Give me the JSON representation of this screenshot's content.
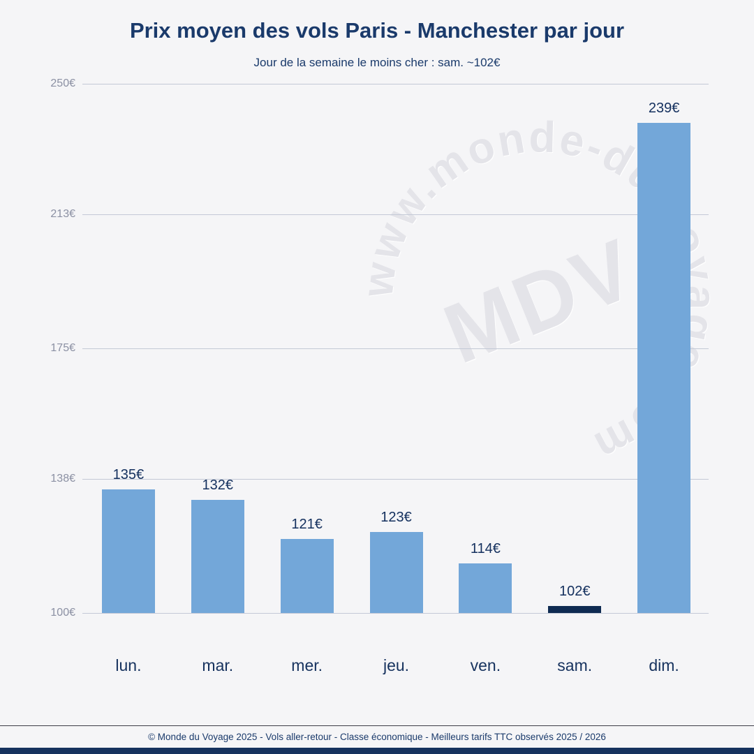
{
  "title": "Prix moyen des vols Paris - Manchester par jour",
  "subtitle": "Jour de la semaine le moins cher : sam. ~102€",
  "watermark": {
    "circle_text": "www.monde-du-voyage.com",
    "center_text": "MDV"
  },
  "footer": "© Monde du Voyage 2025 - Vols aller-retour - Classe économique - Meilleurs tarifs TTC observés 2025 / 2026",
  "colors": {
    "background": "#f5f5f7",
    "bar": "#73a7d9",
    "bar_highlight": "#0f2b52",
    "title": "#1a3a6b",
    "grid": "#c3c9d6",
    "axis_label": "#8b90a3",
    "day_label": "#16325e",
    "bottom_strip": "#16325e"
  },
  "chart_data": {
    "type": "bar",
    "title": "Prix moyen des vols Paris - Manchester par jour",
    "subtitle": "Jour de la semaine le moins cher : sam. ~102€",
    "categories": [
      "lun.",
      "mar.",
      "mer.",
      "jeu.",
      "ven.",
      "sam.",
      "dim."
    ],
    "values": [
      135,
      132,
      121,
      123,
      114,
      102,
      239
    ],
    "value_labels": [
      "135€",
      "132€",
      "121€",
      "123€",
      "114€",
      "102€",
      "239€"
    ],
    "highlight_index": 5,
    "xlabel": "",
    "ylabel": "",
    "ylim": [
      100,
      250
    ],
    "yticks": [
      250,
      213,
      175,
      138,
      100
    ],
    "ytick_labels": [
      "250€",
      "213€",
      "175€",
      "138€",
      "100€"
    ],
    "grid": true,
    "legend": false,
    "currency": "EUR"
  }
}
